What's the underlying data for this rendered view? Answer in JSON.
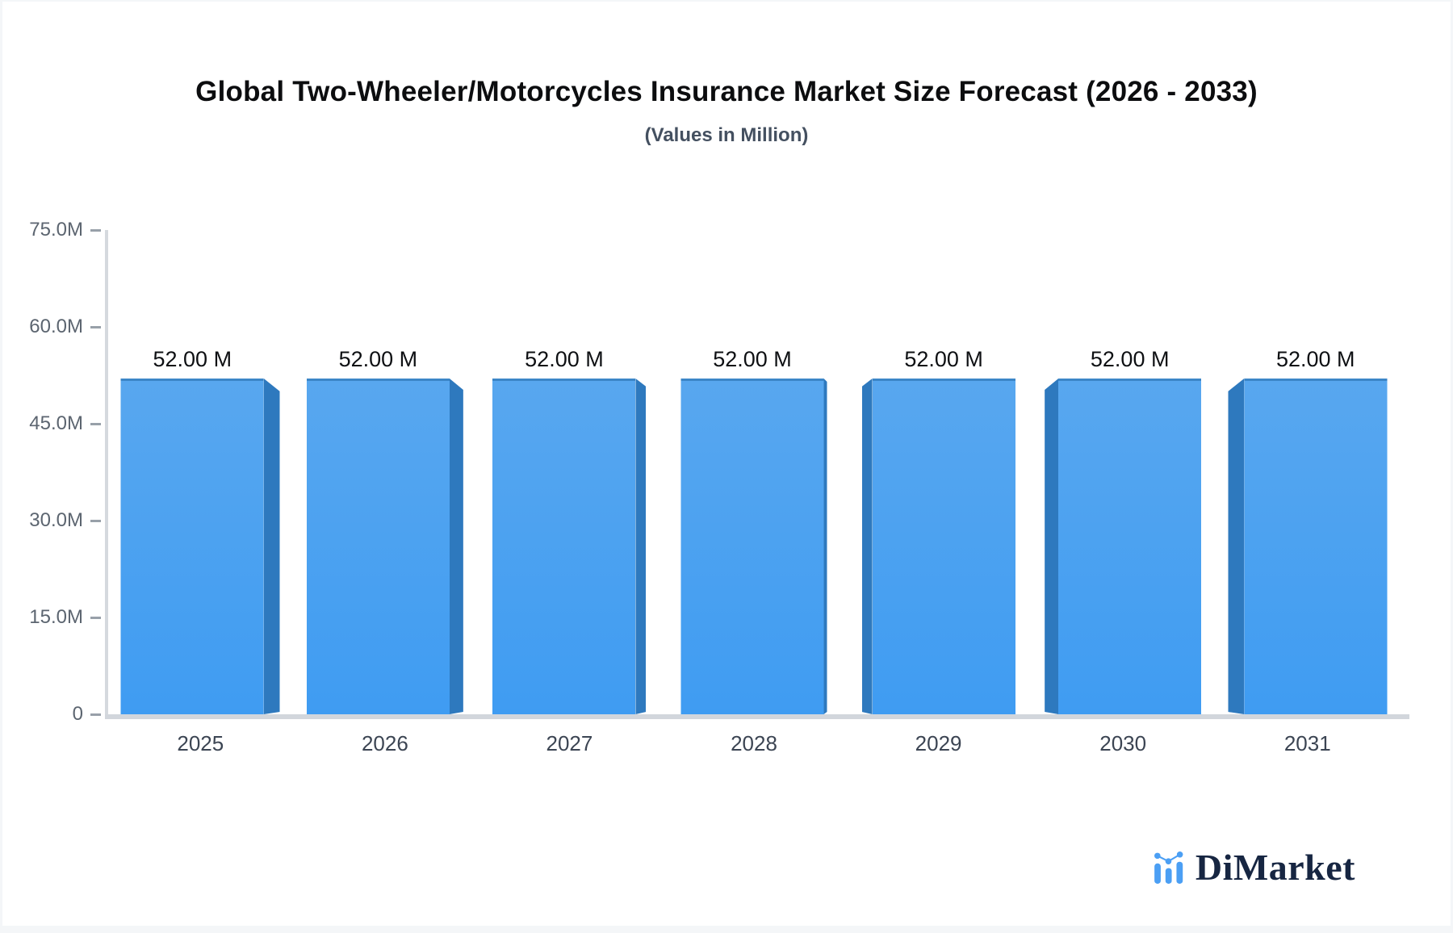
{
  "title": "Global Two-Wheeler/Motorcycles Insurance Market Size Forecast (2026 - 2033)",
  "subtitle": "(Values in Million)",
  "chart_data": {
    "type": "bar",
    "categories": [
      "2025",
      "2026",
      "2027",
      "2028",
      "2029",
      "2030",
      "2031"
    ],
    "values": [
      52,
      52,
      52,
      52,
      52,
      52,
      52
    ],
    "bar_labels": [
      "52.00 M",
      "52.00 M",
      "52.00 M",
      "52.00 M",
      "52.00 M",
      "52.00 M",
      "52.00 M"
    ],
    "title": "Global Two-Wheeler/Motorcycles Insurance Market Size Forecast (2026 - 2033)",
    "xlabel": "",
    "ylabel": "",
    "ylim": [
      0,
      75
    ],
    "yticks": [
      "75.0M",
      "60.0M",
      "45.0M",
      "30.0M",
      "15.0M",
      "0"
    ],
    "grid": false,
    "legend": "none",
    "style": "3d-column",
    "colors": {
      "bar_top": "#58a7ef",
      "bar_bottom": "#3f9cf2",
      "bar_side": "#2e79be",
      "bar_edge": "#3c86c8",
      "axis": "#d2d6dc"
    }
  },
  "branding": {
    "logo_text": "DiMarket",
    "logo_icon": "bar-chart-logo-icon",
    "logo_blue": "#4b9ff4",
    "logo_text_color": "#172642"
  }
}
